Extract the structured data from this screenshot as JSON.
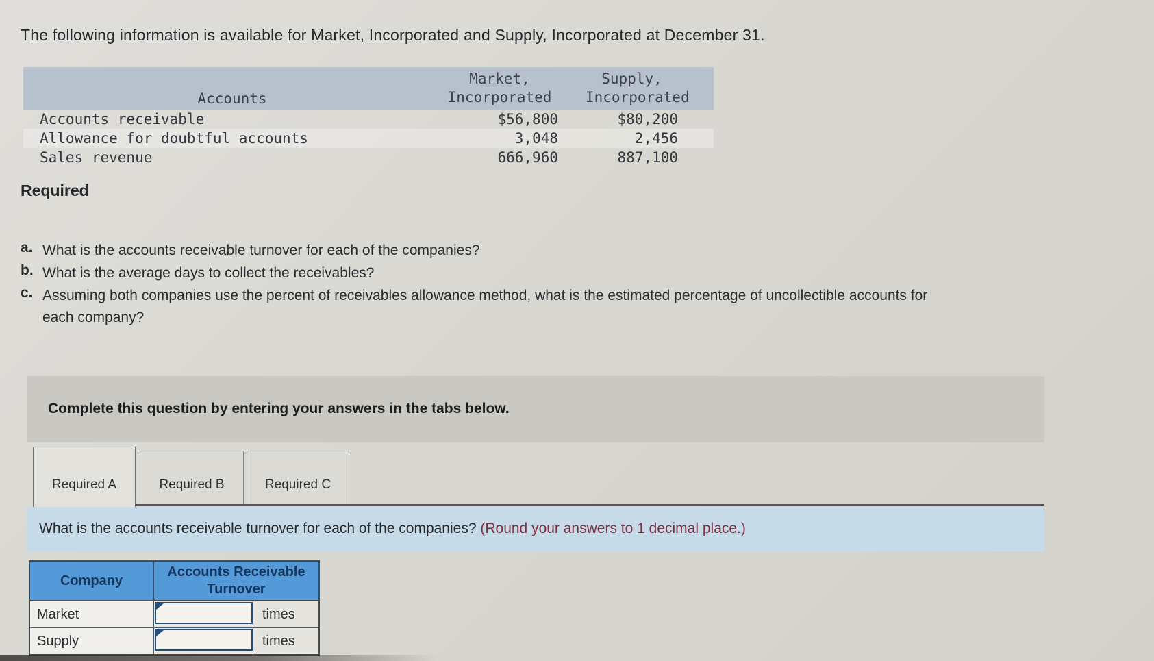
{
  "page": {
    "title": "The following information is available for Market, Incorporated and Supply, Incorporated at December 31."
  },
  "info_table": {
    "header": {
      "accounts": "Accounts",
      "market_line1": "Market,",
      "market_line2": "Incorporated",
      "supply_line1": "Supply,",
      "supply_line2": "Incorporated"
    },
    "rows": [
      {
        "label": "Accounts receivable",
        "market": "$56,800",
        "supply": "$80,200"
      },
      {
        "label": "Allowance for doubtful accounts",
        "market": "3,048",
        "supply": "2,456"
      },
      {
        "label": "Sales revenue",
        "market": "666,960",
        "supply": "887,100"
      }
    ]
  },
  "required": {
    "heading": "Required",
    "items": [
      {
        "letter": "a.",
        "text": "What is the accounts receivable turnover for each of the companies?"
      },
      {
        "letter": "b.",
        "text": "What is the average days to collect the receivables?"
      },
      {
        "letter": "c.",
        "text": "Assuming both companies use the percent of receivables allowance method, what is the estimated percentage of uncollectible accounts for each company?"
      }
    ]
  },
  "panel": {
    "instruction": "Complete this question by entering your answers in the tabs below."
  },
  "tabs": [
    {
      "label": "Required A",
      "active": true
    },
    {
      "label": "Required B",
      "active": false
    },
    {
      "label": "Required C",
      "active": false
    }
  ],
  "question": {
    "text": "What is the accounts receivable turnover for each of the companies?",
    "note": "(Round your answers to 1 decimal place.)"
  },
  "answer_table": {
    "col1_header": "Company",
    "col2_header": "Accounts Receivable Turnover",
    "rows": [
      {
        "company": "Market",
        "value": "",
        "unit": "times"
      },
      {
        "company": "Supply",
        "value": "",
        "unit": "times"
      }
    ]
  },
  "colors": {
    "page_background": "#d8d6d0",
    "info_header_band": "#b7c0cd",
    "gray_panel": "#c9c8c3",
    "blue_strip": "#c6dbe7",
    "note_maroon": "#7e3042",
    "answer_header_blue": "#549ad9",
    "answer_header_text": "#16365c",
    "input_border_navy": "#244f7b"
  }
}
